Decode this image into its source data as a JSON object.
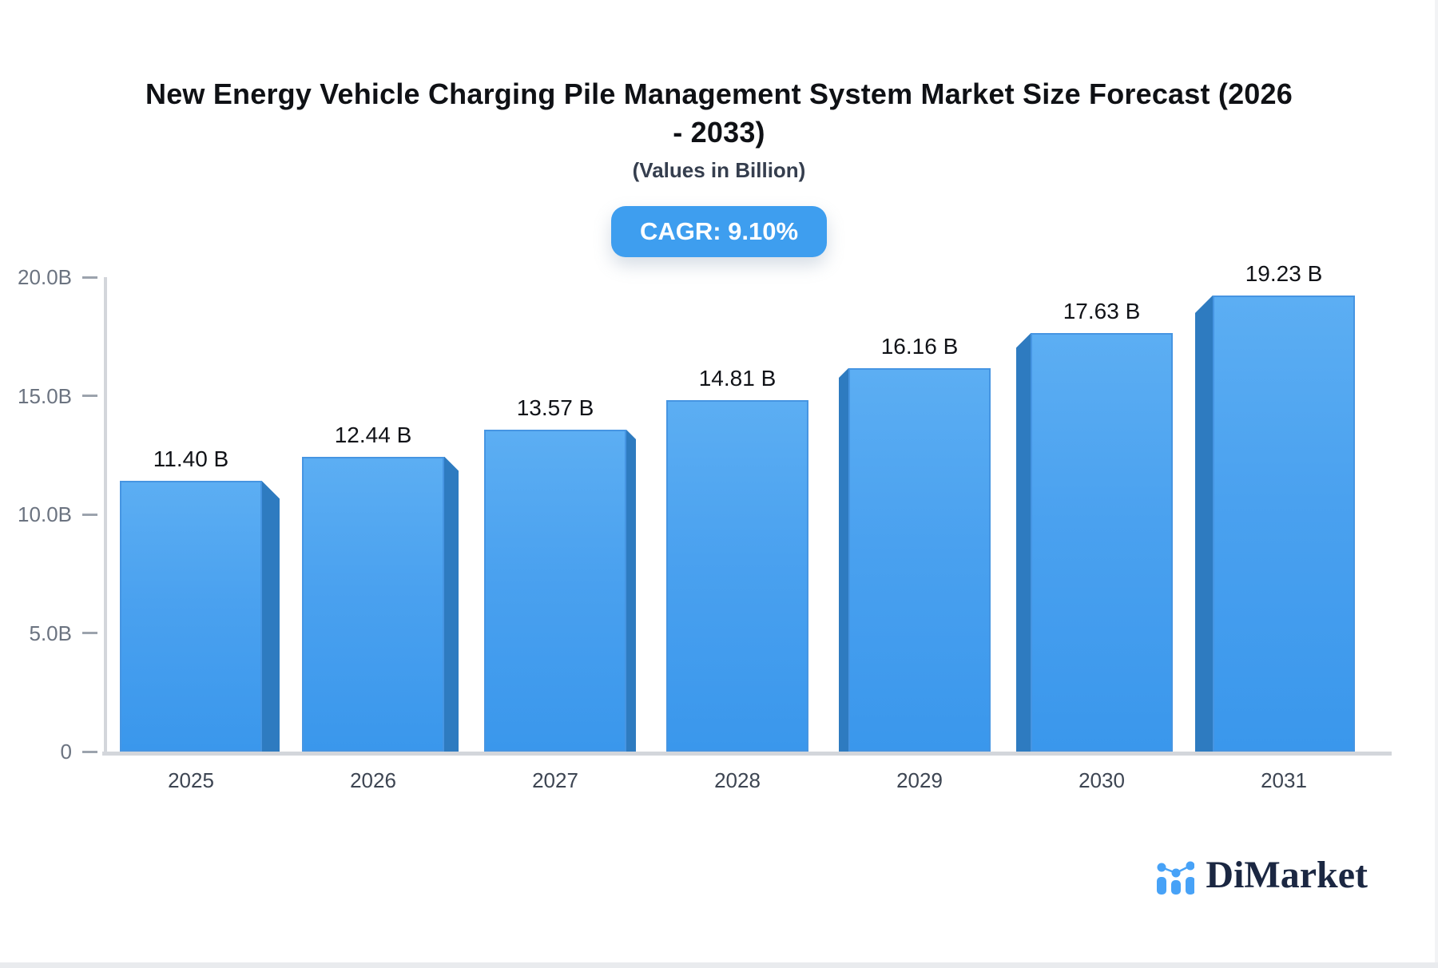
{
  "title": {
    "line1": "New Energy Vehicle Charging Pile Management System Market Size Forecast (2026",
    "line2": "- 2033)"
  },
  "subtitle": "(Values in Billion)",
  "badge": {
    "label": "CAGR: 9.10%"
  },
  "brand": {
    "name": "DiMarket",
    "icon": "bar-chart-trend-icon"
  },
  "colors": {
    "bar_face_top": "#5caef3",
    "bar_face_bottom": "#3a97ec",
    "bar_side": "#2e7bc0",
    "badge_bg": "#3e9eef",
    "axis": "#d3d6db",
    "tick_label": "#6b7380",
    "x_label": "#3d4552",
    "value_label": "#111318",
    "brand_text": "#1b2742",
    "brand_icon": "#47a2f7"
  },
  "chart_data": {
    "type": "bar",
    "title": "New Energy Vehicle Charging Pile Management System Market Size Forecast (2026 - 2033)",
    "subtitle": "(Values in Billion)",
    "cagr": "9.10%",
    "categories": [
      "2025",
      "2026",
      "2027",
      "2028",
      "2029",
      "2030",
      "2031"
    ],
    "values": [
      11.4,
      12.44,
      13.57,
      14.81,
      16.16,
      17.63,
      19.23
    ],
    "value_labels": [
      "11.40 B",
      "12.44 B",
      "13.57 B",
      "14.81 B",
      "16.16 B",
      "17.63 B",
      "19.23 B"
    ],
    "xlabel": "",
    "ylabel": "",
    "ylim": [
      0,
      20
    ],
    "yticks": [
      {
        "label": "20.0B",
        "value": 20
      },
      {
        "label": "15.0B",
        "value": 15
      },
      {
        "label": "10.0B",
        "value": 10
      },
      {
        "label": "5.0B",
        "value": 5
      },
      {
        "label": "0",
        "value": 0
      }
    ],
    "grid": false,
    "legend": false,
    "style": "3d-perspective-bars"
  }
}
